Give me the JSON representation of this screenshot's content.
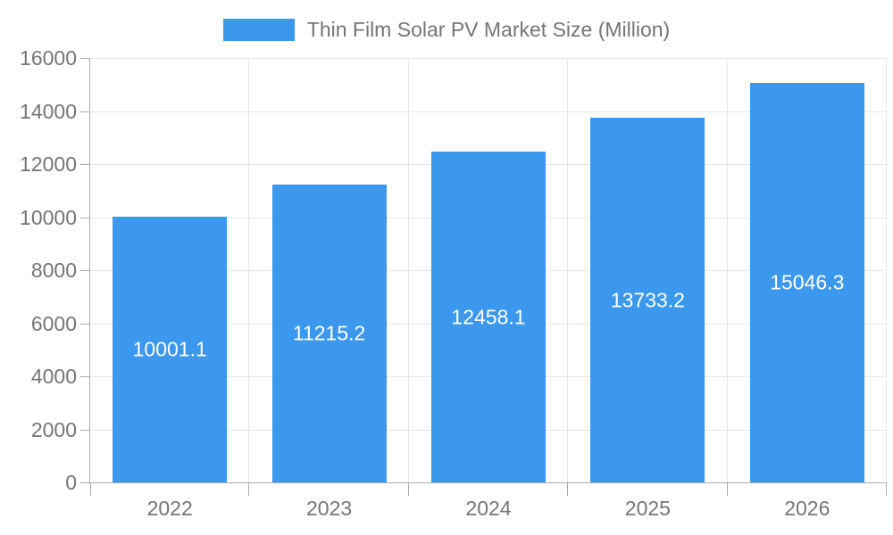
{
  "chart_data": {
    "type": "bar",
    "title": "Thin Film Solar PV Market Size (Million)",
    "legend": {
      "label": "Thin Film Solar PV Market Size (Million)",
      "position": "top-center"
    },
    "categories": [
      "2022",
      "2023",
      "2024",
      "2025",
      "2026"
    ],
    "values": [
      10001.1,
      11215.2,
      12458.1,
      13733.2,
      15046.3
    ],
    "value_labels": [
      "10001.1",
      "11215.2",
      "12458.1",
      "13733.2",
      "15046.3"
    ],
    "xlabel": "",
    "ylabel": "",
    "ylim": [
      0,
      16000
    ],
    "yticks": [
      0,
      2000,
      4000,
      6000,
      8000,
      10000,
      12000,
      14000,
      16000
    ],
    "grid": true,
    "colors": {
      "bar": "#3b98ec",
      "value_label": "#ffffff",
      "axis": "#ababab",
      "gridline": "#e6e6e6",
      "text": "#757575"
    }
  }
}
